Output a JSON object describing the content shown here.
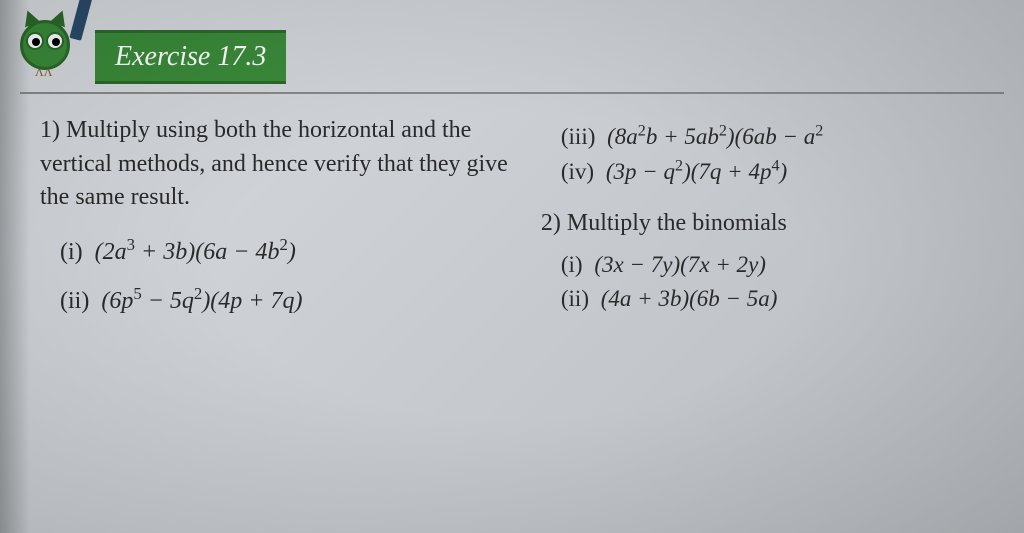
{
  "exercise_label": "Exercise 17.3",
  "q1": {
    "number": "1)",
    "text": "Multiply using both the horizontal and the vertical methods, and hence verify that they give the same result.",
    "items": [
      {
        "num": "(i)",
        "expr": "(2a³ + 3b)(6a − 4b²)"
      },
      {
        "num": "(ii)",
        "expr": "(6p⁵ − 5q²)(4p + 7q)"
      },
      {
        "num": "(iii)",
        "expr": "(8a²b + 5ab²)(6ab − a²"
      },
      {
        "num": "(iv)",
        "expr": "(3p − q²)(7q + 4p⁴)"
      }
    ]
  },
  "q2": {
    "number": "2)",
    "text": "Multiply the binomials",
    "items": [
      {
        "num": "(i)",
        "expr": "(3x − 7y)(7x + 2y)"
      },
      {
        "num": "(ii)",
        "expr": "(4a + 3b)(6b − 5a)"
      }
    ]
  },
  "colors": {
    "badge_bg": "#3a8a3a",
    "badge_border": "#2a6a2a",
    "text": "#2a2a2a",
    "page_bg": "#d0d4d8"
  }
}
